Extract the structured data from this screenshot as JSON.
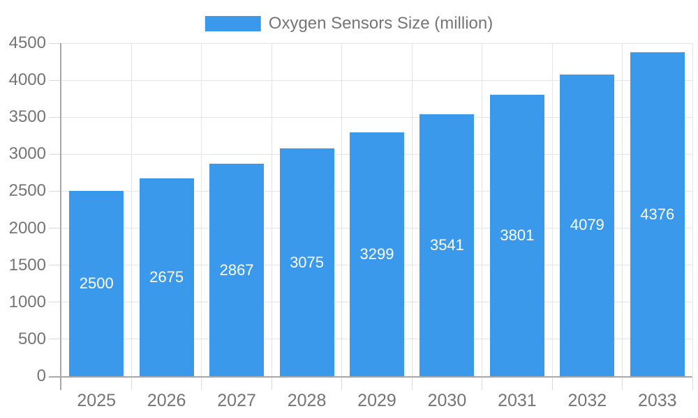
{
  "legend": {
    "label": "Oxygen Sensors Size (million)",
    "position": "top"
  },
  "chart_data": {
    "type": "bar",
    "title": "Oxygen Sensors Size (million)",
    "categories": [
      "2025",
      "2026",
      "2027",
      "2028",
      "2029",
      "2030",
      "2031",
      "2032",
      "2033"
    ],
    "values": [
      2500,
      2675,
      2867,
      3075,
      3299,
      3541,
      3801,
      4079,
      4376
    ],
    "xlabel": "",
    "ylabel": "",
    "ylim": [
      0,
      4500
    ],
    "ytick_step": 500,
    "yticks": [
      0,
      500,
      1000,
      1500,
      2000,
      2500,
      3000,
      3500,
      4000,
      4500
    ],
    "grid": true,
    "legend_position": "top",
    "value_labels": "inside-center"
  },
  "colors": {
    "bar": "#3b99ec",
    "value_label": "#ffffff",
    "grid": "#e5e5e5",
    "tick": "#d9d9d9",
    "axis": "#a8a8a8",
    "label_text": "#757575",
    "background": "#ffffff"
  }
}
